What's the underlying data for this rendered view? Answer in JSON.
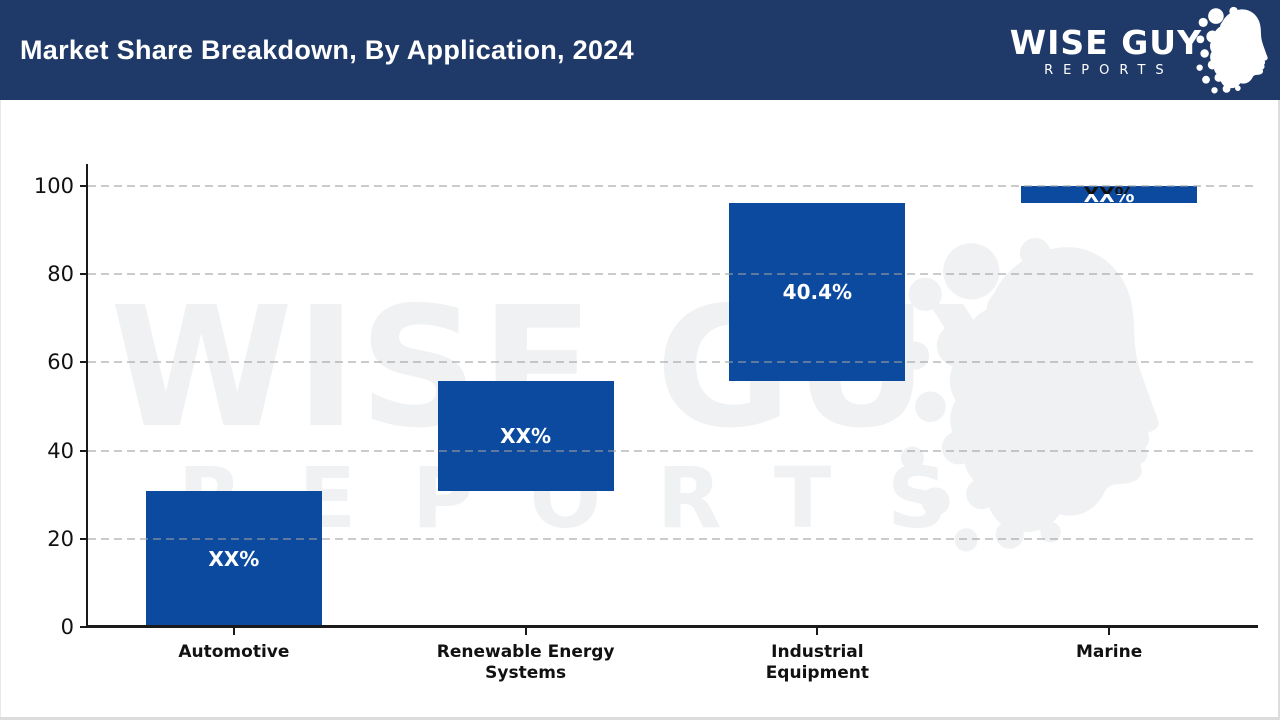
{
  "header": {
    "title": "Market Share Breakdown, By Application, 2024",
    "logo": {
      "name": "WISE GUY",
      "subtitle": "REPORTS"
    }
  },
  "watermark": {
    "name": "WISE GUY",
    "subtitle": "REPORTS"
  },
  "colors": {
    "header_bg": "#1f3a68",
    "bar": "#0b4a9e",
    "axis": "#1a1a1a",
    "grid_dash": "rgba(160,160,160,0.55)",
    "watermark": "#f0f1f3",
    "revealed_label": "#ffffff"
  },
  "chart_data": {
    "type": "bar",
    "subtype": "floating-segment-waterfall",
    "title": "Market Share Breakdown, By Application, 2024",
    "xlabel": "",
    "ylabel": "",
    "ylim": [
      0,
      105
    ],
    "y_ticks": [
      0,
      20,
      40,
      60,
      80,
      100
    ],
    "grid": "horizontal-dashed",
    "legend": "none",
    "bar_color": "#0b4a9e",
    "categories": [
      "Automotive",
      "Renewable Energy Systems",
      "Industrial Equipment",
      "Marine"
    ],
    "bars": [
      {
        "category": "Automotive",
        "label_lines": [
          "Automotive"
        ],
        "from": 0,
        "to": 30.8,
        "value_label": "XX%",
        "label_placement": "inside"
      },
      {
        "category": "Renewable Energy Systems",
        "label_lines": [
          "Renewable Energy",
          "Systems"
        ],
        "from": 30.8,
        "to": 55.7,
        "value_label": "XX%",
        "label_placement": "inside"
      },
      {
        "category": "Industrial Equipment",
        "label_lines": [
          "Industrial",
          "Equipment"
        ],
        "from": 55.7,
        "to": 96.1,
        "value_label": "40.4%",
        "label_placement": "inside"
      },
      {
        "category": "Marine",
        "label_lines": [
          "Marine"
        ],
        "from": 96.1,
        "to": 100,
        "value_label": "XX%",
        "label_placement": "top-edge"
      }
    ]
  }
}
